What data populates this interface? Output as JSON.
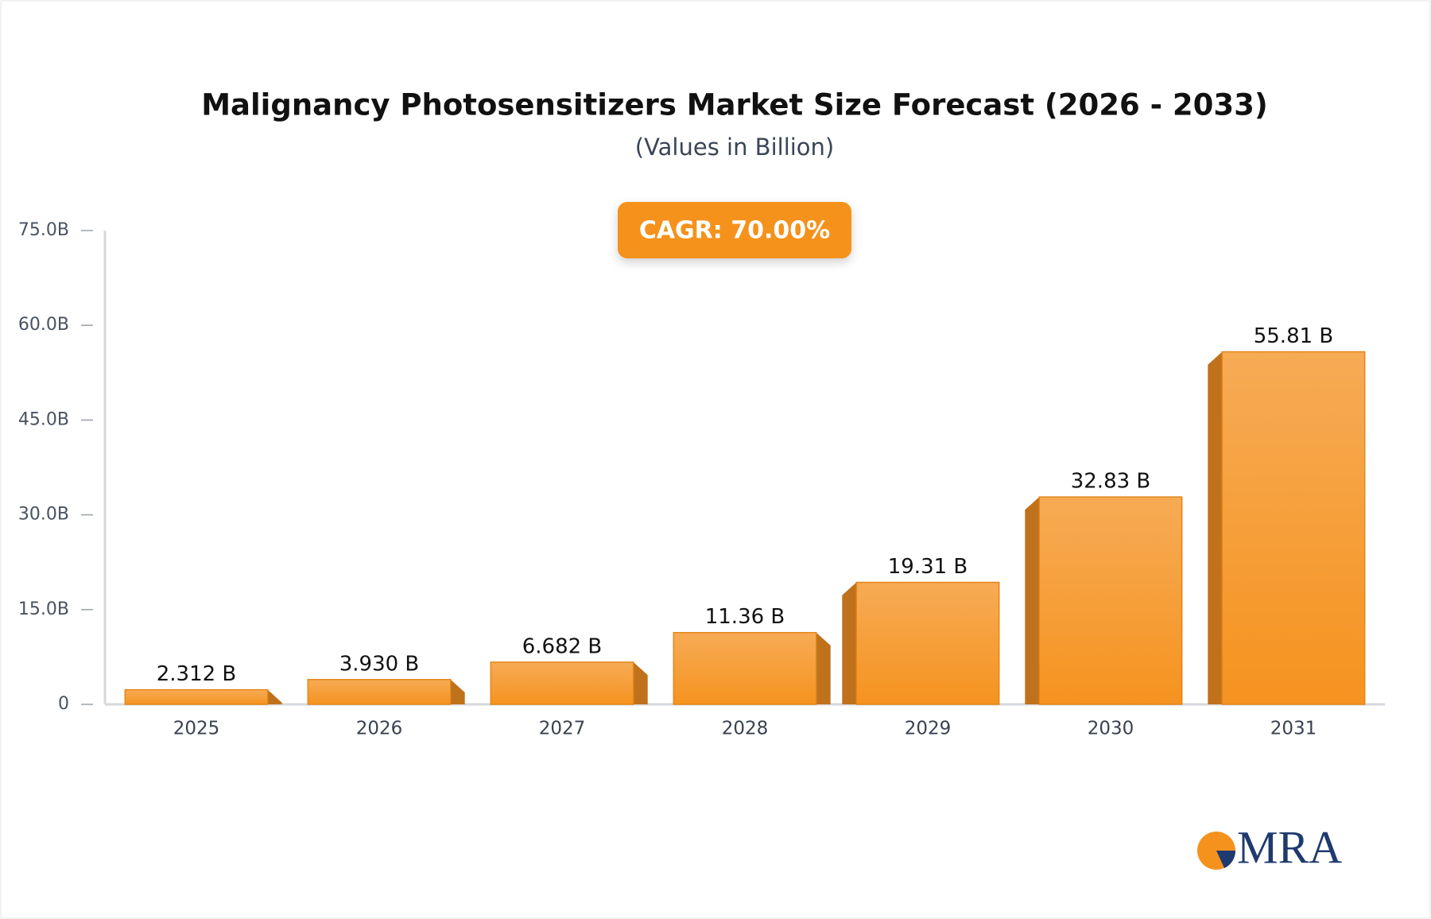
{
  "chart_data": {
    "type": "bar",
    "title": "Malignancy Photosensitizers Market Size Forecast (2026 - 2033)",
    "subtitle": "(Values in Billion)",
    "annotation": "CAGR: 70.00%",
    "logo": "MRA",
    "categories": [
      "2025",
      "2026",
      "2027",
      "2028",
      "2029",
      "2030",
      "2031"
    ],
    "values": [
      2.312,
      3.93,
      6.682,
      11.36,
      19.31,
      32.83,
      55.81
    ],
    "value_labels": [
      "2.312 B",
      "3.930 B",
      "6.682 B",
      "11.36 B",
      "19.31 B",
      "32.83 B",
      "55.81 B"
    ],
    "color": "#f6a04a",
    "ylim": [
      0,
      75
    ],
    "yticks": [
      0,
      {
        "value": 15,
        "label": "15.0B"
      },
      {
        "value": 30,
        "label": "30.0B"
      },
      {
        "value": 45,
        "label": "45.0B"
      },
      {
        "value": 60,
        "label": "60.0B"
      },
      {
        "value": 75,
        "label": "75.0B"
      }
    ]
  }
}
